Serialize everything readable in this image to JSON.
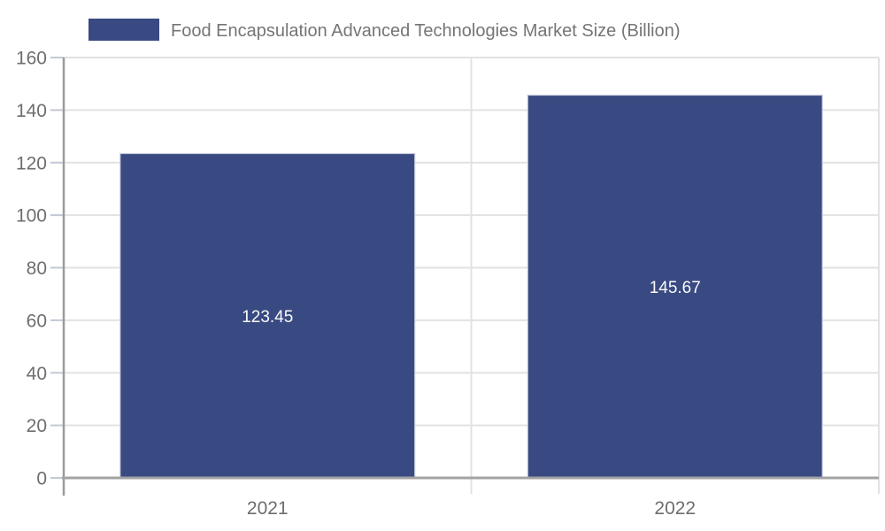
{
  "chart_data": {
    "type": "bar",
    "title": "",
    "legend": {
      "label": "Food Encapsulation Advanced Technologies Market Size (Billion)",
      "position": "top"
    },
    "categories": [
      "2021",
      "2022"
    ],
    "values": [
      123.45,
      145.67
    ],
    "value_labels": [
      "123.45",
      "145.67"
    ],
    "xlabel": "",
    "ylabel": "",
    "ylim": [
      0,
      160
    ],
    "yticks": [
      0,
      20,
      40,
      60,
      80,
      100,
      120,
      140,
      160
    ],
    "grid": true,
    "colors": {
      "bar_fill": "#394a82",
      "bar_stroke": "#c9ccdd",
      "grid_line": "#e2e2e2",
      "axis_line": "#a3a3a3",
      "y_axis_line": "#9b9b9b",
      "tick_stub": "#c3c8d6",
      "tick_label": "#6e6e6e",
      "legend_text": "#757575",
      "data_label": "#fafafa",
      "background": "#ffffff"
    }
  }
}
